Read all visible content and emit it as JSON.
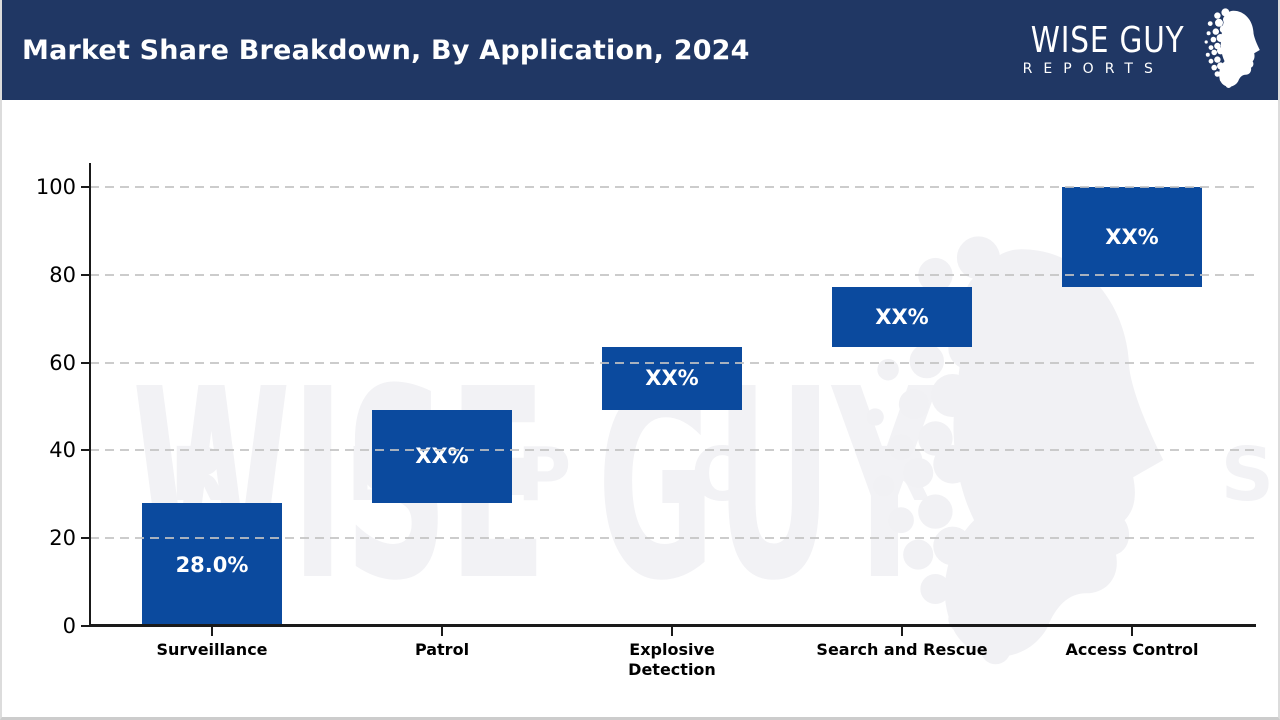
{
  "header": {
    "title": "Market Share Breakdown, By Application, 2024",
    "logo": {
      "line1": "WISE GUY",
      "line2": "REPORTS"
    }
  },
  "watermark": {
    "line1": "WISE GUY",
    "line2": "R E P O R T S"
  },
  "colors": {
    "header_bg": "#203764",
    "bar": "#0B4A9E",
    "axis": "#1A1A1A",
    "gridline": "#C3C3C3",
    "bar_label": "#FFFFFF",
    "watermark": "#F2F2F5"
  },
  "chart_data": {
    "type": "bar",
    "subtype": "waterfall",
    "title": "Market Share Breakdown, By Application, 2024",
    "categories": [
      "Surveillance",
      "Patrol",
      "Explosive\nDetection",
      "Search and Rescue",
      "Access Control"
    ],
    "segments": [
      {
        "category": "Surveillance",
        "start": 0,
        "end": 28,
        "label": "28.0%"
      },
      {
        "category": "Patrol",
        "start": 28,
        "end": 49.3,
        "label": "XX%"
      },
      {
        "category": "Explosive Detection",
        "start": 49.3,
        "end": 63.6,
        "label": "XX%"
      },
      {
        "category": "Search and Rescue",
        "start": 63.6,
        "end": 77.2,
        "label": "XX%"
      },
      {
        "category": "Access Control",
        "start": 77.2,
        "end": 100,
        "label": "XX%"
      }
    ],
    "yticks": [
      0,
      20,
      40,
      60,
      80,
      100
    ],
    "ylim": [
      0,
      105
    ],
    "xlabel": "",
    "ylabel": "",
    "grid": "horizontal-dashed",
    "legend": "none"
  }
}
